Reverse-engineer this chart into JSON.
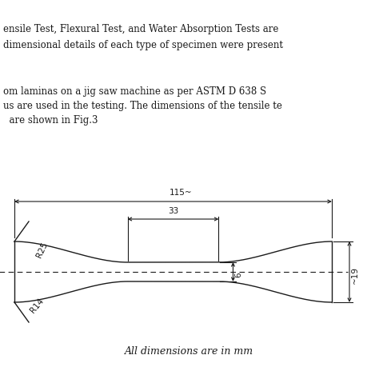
{
  "text_line1": "ensile Test, Flexural Test, and Water Absorption Tests are",
  "text_line2": "dimensional details of each type of specimen were present",
  "text_line3": "om laminas on a jig saw machine as per ASTM D 638 S",
  "text_line4": "us are used in the testing. The dimensions of the tensile te",
  "text_line5": "  are shown in Fig.3",
  "caption": "All dimensions are in mm",
  "dim_115": "115~",
  "dim_33": "33",
  "dim_6": "6",
  "dim_19": "~19",
  "dim_R25": "R25",
  "dim_R14": "R14",
  "bg_color": "#ffffff",
  "line_color": "#1a1a1a",
  "font_size_text": 8.5,
  "font_size_dim": 7.5,
  "font_size_caption": 9.0,
  "figsize": [
    4.74,
    4.74
  ],
  "dpi": 100
}
